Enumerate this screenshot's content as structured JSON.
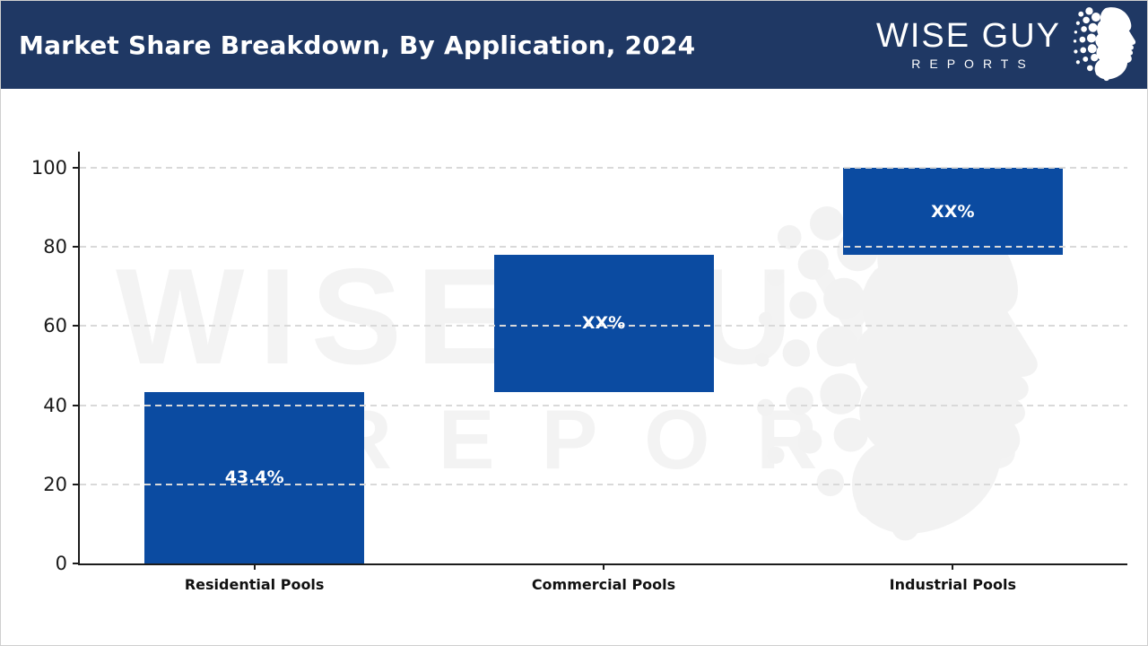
{
  "header": {
    "title": "Market Share Breakdown, By Application, 2024",
    "logo": {
      "line1": "WISE GUY",
      "line2": "REPORTS"
    }
  },
  "watermark": {
    "line1": "WISE GUY",
    "line2": "REPORTS"
  },
  "colors": {
    "header_bg": "#1f3864",
    "bar": "#0b4ba1",
    "bar_label": "#ffffff",
    "grid": "#d9d9d9",
    "axis": "#1c1c1c",
    "watermark": "#f3f3f3"
  },
  "chart_data": {
    "type": "bar",
    "subtype": "waterfall",
    "title": "Market Share Breakdown, By Application, 2024",
    "xlabel": "",
    "ylabel": "",
    "categories": [
      "Residential Pools",
      "Commercial Pools",
      "Industrial Pools"
    ],
    "segments": [
      {
        "category": "Residential Pools",
        "start": 0,
        "end": 43.4,
        "label": "43.4%"
      },
      {
        "category": "Commercial Pools",
        "start": 43.4,
        "end": 78,
        "label": "XX%"
      },
      {
        "category": "Industrial Pools",
        "start": 78,
        "end": 100,
        "label": "XX%"
      }
    ],
    "yticks": [
      0,
      20,
      40,
      60,
      80,
      100
    ],
    "ylim": [
      0,
      100
    ],
    "grid": "horizontal-dashed",
    "legend": "none",
    "bar_color": "#0b4ba1"
  }
}
